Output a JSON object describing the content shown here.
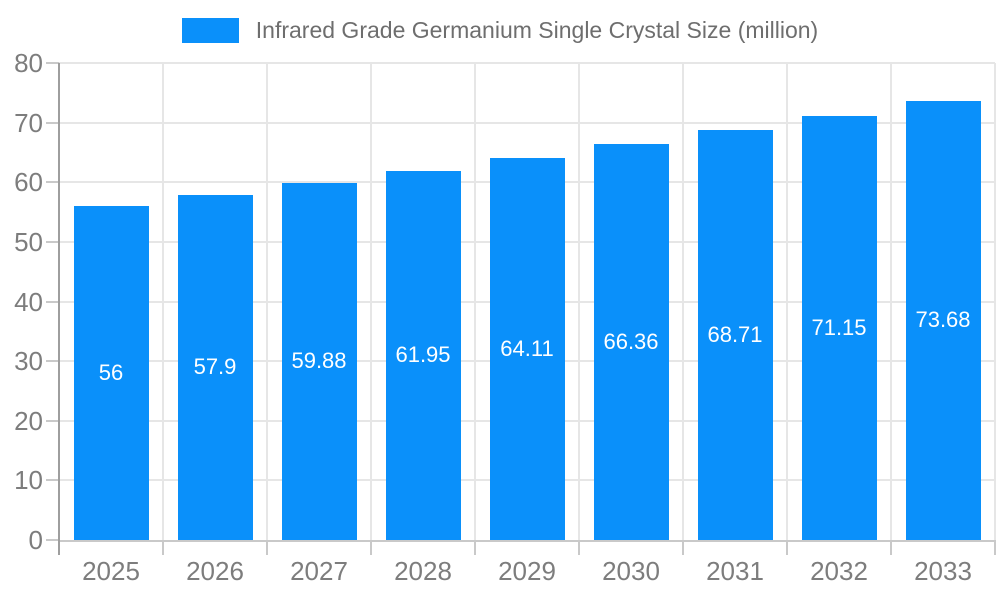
{
  "chart_data": {
    "type": "bar",
    "title": "Infrared Grade Germanium Single Crystal Size (million)",
    "categories": [
      "2025",
      "2026",
      "2027",
      "2028",
      "2029",
      "2030",
      "2031",
      "2032",
      "2033"
    ],
    "values": [
      56,
      57.9,
      59.88,
      61.95,
      64.11,
      66.36,
      68.71,
      71.15,
      73.68
    ],
    "value_labels": [
      "56",
      "57.9",
      "59.88",
      "61.95",
      "64.11",
      "66.36",
      "68.71",
      "71.15",
      "73.68"
    ],
    "ylim": [
      0,
      80
    ],
    "ytick_step": 10,
    "ytick_labels": [
      "0",
      "10",
      "20",
      "30",
      "40",
      "50",
      "60",
      "70",
      "80"
    ],
    "grid": true,
    "legend_position": "top",
    "bar_color": "#0a90fa",
    "bar_label_color": "#ffffff",
    "axis_text_color": "#7d7d7d",
    "title_color": "#6e6e6e",
    "gridline_color": "#e6e6e6"
  }
}
